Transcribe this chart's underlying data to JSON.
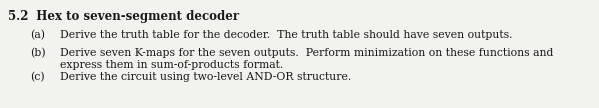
{
  "title_num": "5.2",
  "title_text": "  Hex to seven-segment decoder",
  "items": [
    {
      "label": "(a)",
      "text": "Derive the truth table for the decoder.  The truth table should have seven outputs."
    },
    {
      "label": "(b)",
      "text_line1": "Derive seven K-maps for the seven outputs.  Perform minimization on these functions and",
      "text_line2": "express them in sum-of-products format."
    },
    {
      "label": "(c)",
      "text": "Derive the circuit using two-level AND-OR structure."
    }
  ],
  "background_color": "#f2f2ee",
  "text_color": "#1a1a1a",
  "font_size_title": 8.5,
  "font_size_body": 7.8,
  "font_family": "DejaVu Serif"
}
